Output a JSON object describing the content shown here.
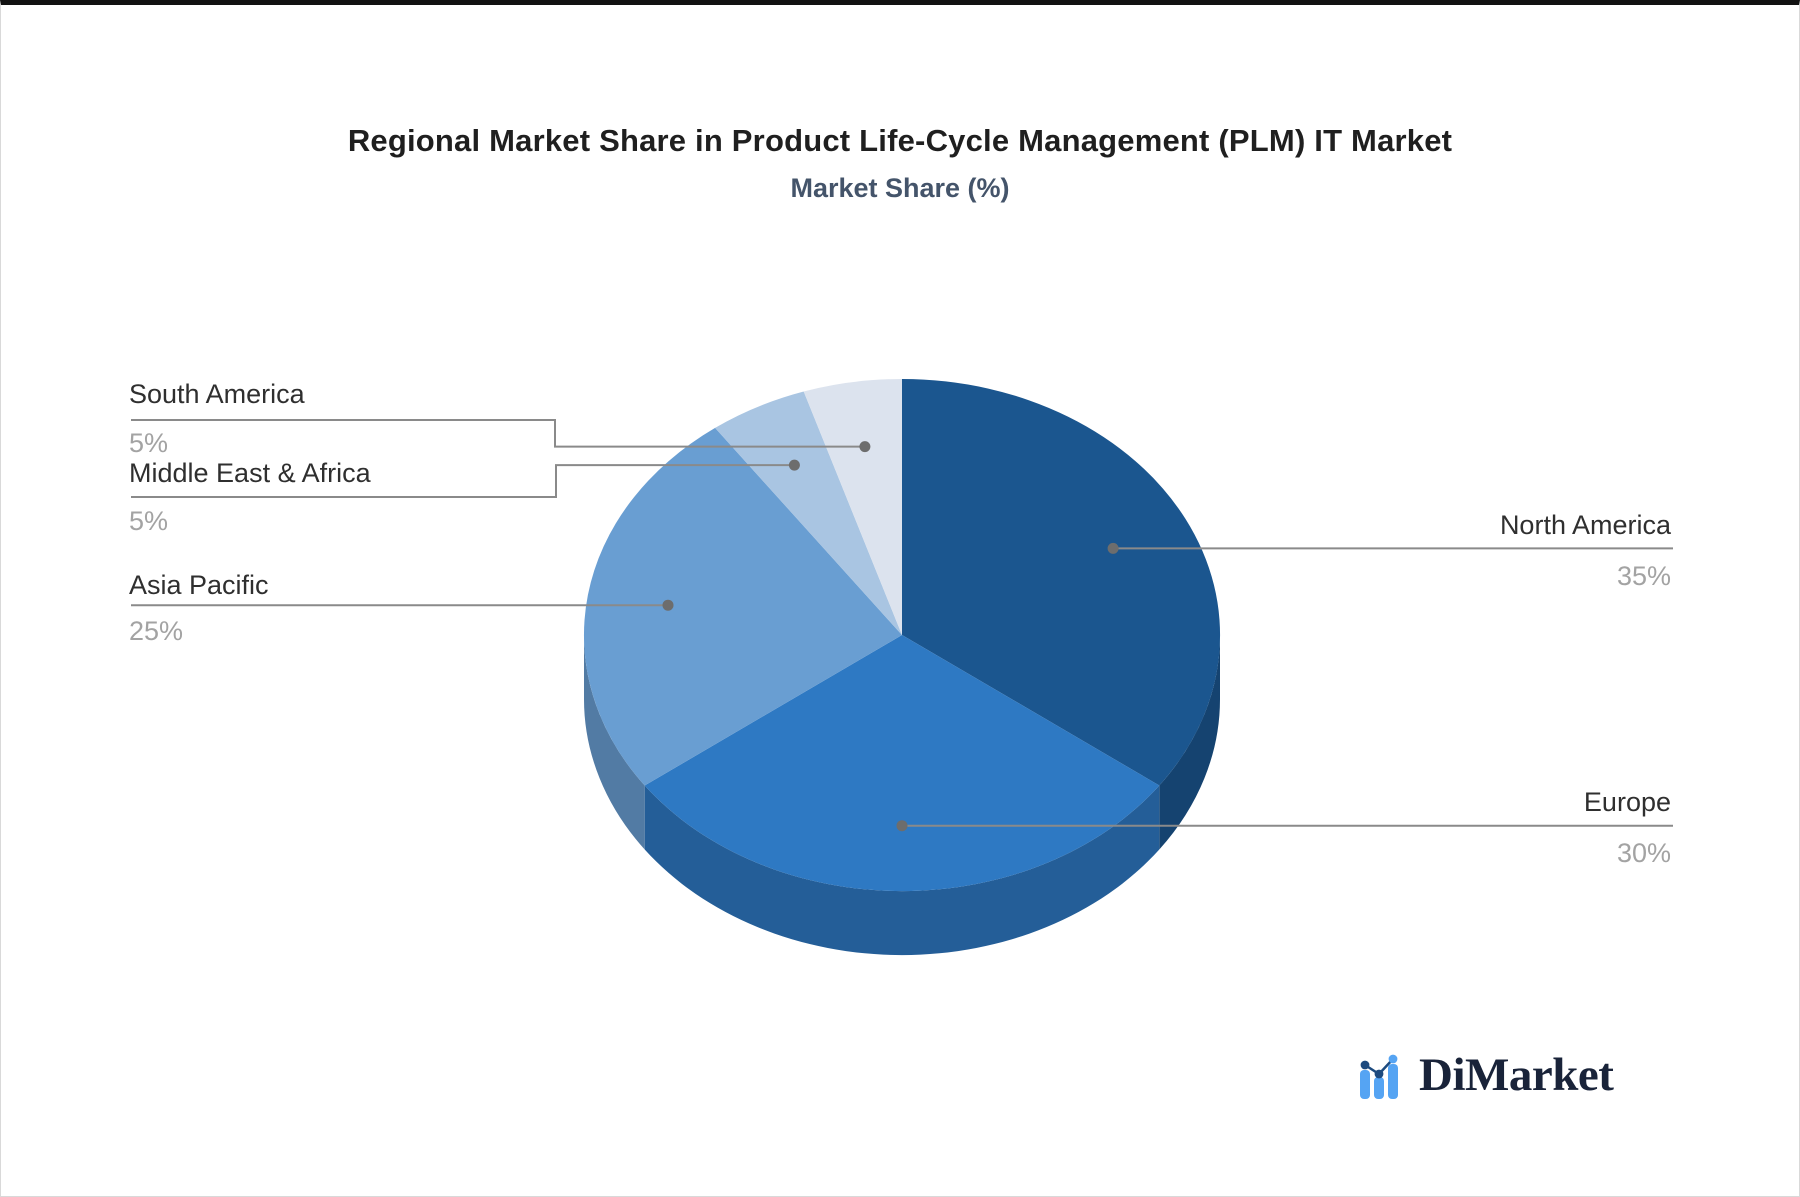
{
  "page": {
    "title": "Regional Market Share in Product Life-Cycle Management (PLM) IT Market",
    "subtitle": "Market Share (%)"
  },
  "logo": {
    "text": "DiMarket"
  },
  "chart_data": {
    "type": "pie",
    "title": "Regional Market Share in Product Life-Cycle Management (PLM) IT Market",
    "subtitle": "Market Share (%)",
    "unit": "%",
    "effect": "3d",
    "start_angle_deg": 90,
    "direction": "clockwise",
    "legend_position": "callout-labels",
    "slices": [
      {
        "id": "north-america",
        "label": "North America",
        "value": 35,
        "display": "35%",
        "color": "#1b568f",
        "callout_side": "right"
      },
      {
        "id": "europe",
        "label": "Europe",
        "value": 30,
        "display": "30%",
        "color": "#2e79c3",
        "callout_side": "right"
      },
      {
        "id": "asia-pacific",
        "label": "Asia Pacific",
        "value": 25,
        "display": "25%",
        "color": "#699ed2",
        "callout_side": "left"
      },
      {
        "id": "middle-east-africa",
        "label": "Middle East & Africa",
        "value": 5,
        "display": "5%",
        "color": "#a9c5e2",
        "callout_side": "left"
      },
      {
        "id": "south-america",
        "label": "South America",
        "value": 5,
        "display": "5%",
        "color": "#dce3ee",
        "callout_side": "left"
      }
    ],
    "connector_color": "#8a8a8a",
    "connector_dot_color": "#6d6d6d"
  }
}
